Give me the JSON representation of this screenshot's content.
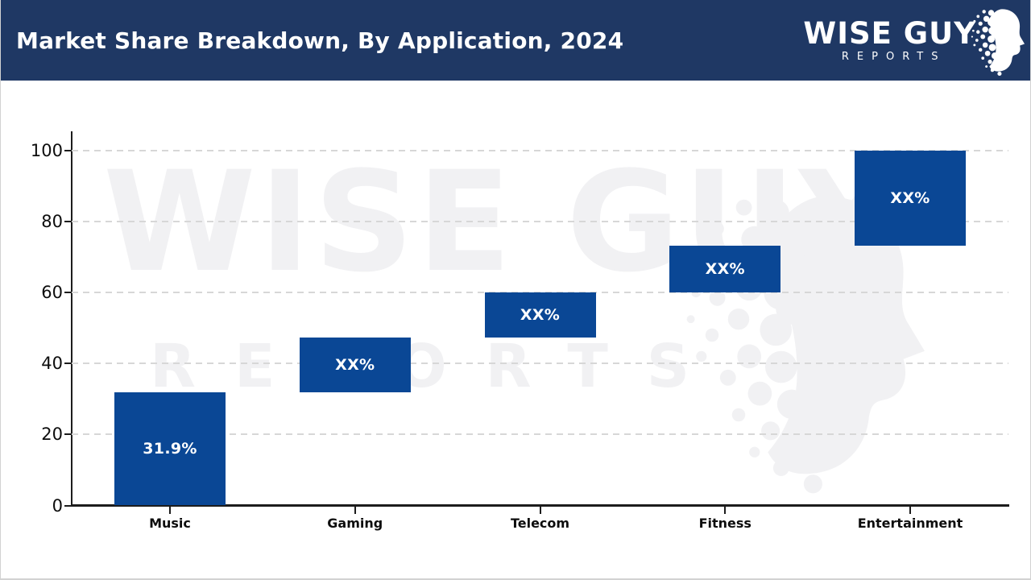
{
  "header": {
    "title": "Market Share Breakdown, By Application, 2024",
    "logo": {
      "line1": "WISE GUY",
      "line2": "REPORTS"
    }
  },
  "watermark": {
    "line1": "WISE GUY",
    "line2": "REPORTS"
  },
  "chart_data": {
    "type": "bar",
    "subtype": "waterfall",
    "title": "Market Share Breakdown, By Application, 2024",
    "categories": [
      "Music",
      "Gaming",
      "Telecom",
      "Fitness",
      "Entertainment"
    ],
    "segments": [
      {
        "category": "Music",
        "start": 0,
        "end": 31.9,
        "label": "31.9%"
      },
      {
        "category": "Gaming",
        "start": 31.9,
        "end": 47.4,
        "label": "XX%"
      },
      {
        "category": "Telecom",
        "start": 47.4,
        "end": 60,
        "label": "XX%"
      },
      {
        "category": "Fitness",
        "start": 60,
        "end": 73.1,
        "label": "XX%"
      },
      {
        "category": "Entertainment",
        "start": 73.1,
        "end": 100,
        "label": "XX%"
      }
    ],
    "xlabel": "",
    "ylabel": "",
    "yticks": [
      0,
      20,
      40,
      60,
      80,
      100
    ],
    "ylim": [
      0,
      105
    ],
    "grid": "horizontal-dashed",
    "legend": "none"
  },
  "colors": {
    "header_bg": "#1f3864",
    "bar": "#0a4795",
    "bar_label": "#ffffff",
    "axis": "#1c1c1c",
    "grid": "#d7d7d7",
    "watermark": "#f1f1f3",
    "tick_text": "#0d0d0d"
  }
}
